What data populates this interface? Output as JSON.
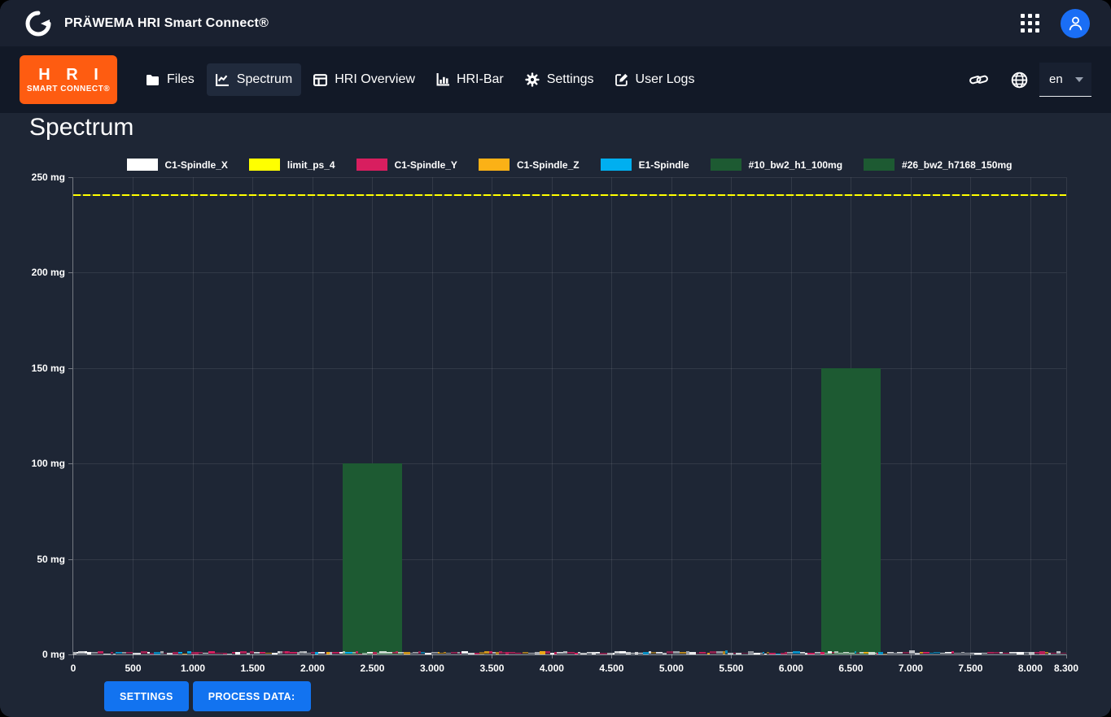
{
  "header": {
    "title": "PRÄWEMA HRI Smart Connect®"
  },
  "nav": {
    "logo": {
      "line1": "H R I",
      "line2": "SMART CONNECT®"
    },
    "tabs": [
      {
        "label": "Files",
        "icon": "folder-icon",
        "active": false
      },
      {
        "label": "Spectrum",
        "icon": "chart-line-icon",
        "active": true
      },
      {
        "label": "HRI Overview",
        "icon": "table-icon",
        "active": false
      },
      {
        "label": "HRI-Bar",
        "icon": "bar-chart-icon",
        "active": false
      },
      {
        "label": "Settings",
        "icon": "gear-icon",
        "active": false
      },
      {
        "label": "User Logs",
        "icon": "edit-icon",
        "active": false
      }
    ],
    "language": {
      "selected": "en"
    }
  },
  "page": {
    "title": "Spectrum"
  },
  "chart_data": {
    "type": "bar",
    "title": "Spectrum",
    "xlabel": "",
    "ylabel": "mg",
    "xlim": [
      0,
      8300
    ],
    "ylim": [
      0,
      250
    ],
    "grid": true,
    "legend_position": "top",
    "x_ticks": [
      {
        "value": 0,
        "label": "0"
      },
      {
        "value": 500,
        "label": "500"
      },
      {
        "value": 1000,
        "label": "1.000"
      },
      {
        "value": 1500,
        "label": "1.500"
      },
      {
        "value": 2000,
        "label": "2.000"
      },
      {
        "value": 2500,
        "label": "2.500"
      },
      {
        "value": 3000,
        "label": "3.000"
      },
      {
        "value": 3500,
        "label": "3.500"
      },
      {
        "value": 4000,
        "label": "4.000"
      },
      {
        "value": 4500,
        "label": "4.500"
      },
      {
        "value": 5000,
        "label": "5.000"
      },
      {
        "value": 5500,
        "label": "5.500"
      },
      {
        "value": 6000,
        "label": "6.000"
      },
      {
        "value": 6500,
        "label": "6.500"
      },
      {
        "value": 7000,
        "label": "7.000"
      },
      {
        "value": 7500,
        "label": "7.500"
      },
      {
        "value": 8000,
        "label": "8.000"
      },
      {
        "value": 8300,
        "label": "8.300"
      }
    ],
    "y_ticks": [
      {
        "value": 0,
        "label": "0 mg"
      },
      {
        "value": 50,
        "label": "50 mg"
      },
      {
        "value": 100,
        "label": "100 mg"
      },
      {
        "value": 150,
        "label": "150 mg"
      },
      {
        "value": 200,
        "label": "200 mg"
      },
      {
        "value": 250,
        "label": "250 mg"
      }
    ],
    "legend": [
      {
        "name": "C1-Spindle_X",
        "color": "#ffffff"
      },
      {
        "name": "limit_ps_4",
        "color": "#ffff00"
      },
      {
        "name": "C1-Spindle_Y",
        "color": "#d81e5f"
      },
      {
        "name": "C1-Spindle_Z",
        "color": "#fbb116"
      },
      {
        "name": "E1-Spindle",
        "color": "#00aff0"
      },
      {
        "name": "#10_bw2_h1_100mg",
        "color": "#1d5a32"
      },
      {
        "name": "#26_bw2_h7168_150mg",
        "color": "#1d5a32"
      }
    ],
    "limit_line": {
      "series": "limit_ps_4",
      "value": 240,
      "style": "dashed",
      "color": "#ffff00"
    },
    "bars": [
      {
        "series": "#10_bw2_h1_100mg",
        "x_start": 2250,
        "x_end": 2750,
        "value": 100,
        "color": "#1d5a32"
      },
      {
        "series": "#26_bw2_h7168_150mg",
        "x_start": 6250,
        "x_end": 6750,
        "value": 150,
        "color": "#1d5a32"
      }
    ],
    "baseline_noise": {
      "description": "spindle signal traces fluctuating near 0 mg across the full x range",
      "series": [
        "C1-Spindle_X",
        "C1-Spindle_Y",
        "C1-Spindle_Z",
        "E1-Spindle"
      ],
      "approx_max_mg": 2,
      "colors": [
        "#ffffff",
        "#d81e5f",
        "#fbb116",
        "#00aff0"
      ]
    }
  },
  "footer": {
    "buttons": [
      {
        "label": "SETTINGS"
      },
      {
        "label": "PROCESS DATA:"
      }
    ]
  },
  "colors": {
    "header_bg": "#1a2130",
    "nav_bg": "#121927",
    "main_bg": "#1e2635",
    "active_tab_bg": "#202a3c",
    "accent_orange": "#fe5c11",
    "button_blue": "#1273f0",
    "avatar_blue": "#1a6ef5",
    "limit_yellow": "#ffff00",
    "bar_green": "#1d5a32"
  }
}
